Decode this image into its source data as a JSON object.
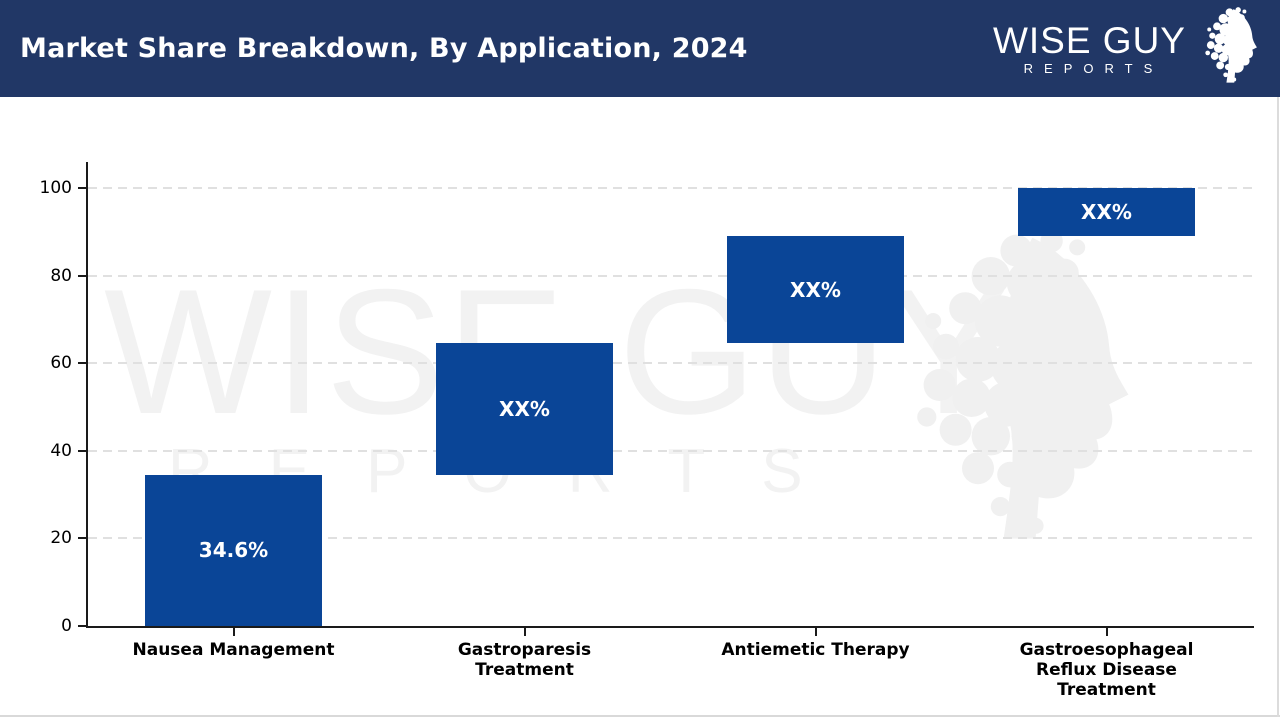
{
  "header": {
    "title": "Market Share Breakdown, By Application, 2024",
    "bg_color": "#213766",
    "logo": {
      "name": "WISE GUY",
      "subtitle": "REPORTS",
      "icon": "dotted-head-profile"
    }
  },
  "watermark": {
    "line1": "WISE GUY",
    "line2": "REPORTS",
    "icon": "dotted-head-profile",
    "color": "#f2f2f2"
  },
  "chart_data": {
    "type": "bar",
    "subtype": "waterfall-stacked-percentage",
    "title": "Market Share Breakdown, By Application, 2024",
    "categories": [
      "Nausea Management",
      "Gastroparesis\nTreatment",
      "Antiemetic Therapy",
      "Gastroesophageal\nReflux Disease\nTreatment"
    ],
    "segments": [
      {
        "start": 0,
        "end": 34.6,
        "label": "34.6%"
      },
      {
        "start": 34.6,
        "end": 64.6,
        "label": "XX%"
      },
      {
        "start": 64.6,
        "end": 89.0,
        "label": "XX%"
      },
      {
        "start": 89.0,
        "end": 100.0,
        "label": "XX%"
      }
    ],
    "xlabel": "",
    "ylabel": "",
    "y_ticks": [
      0,
      20,
      40,
      60,
      80,
      100
    ],
    "ylim": [
      0,
      106
    ],
    "grid": "horizontal-dashed",
    "legend": "none",
    "bar_color": "#0a4597",
    "bar_label_color": "#ffffff",
    "axis_color": "#1a1a1a",
    "gridline_color": "#e0e0e0"
  }
}
